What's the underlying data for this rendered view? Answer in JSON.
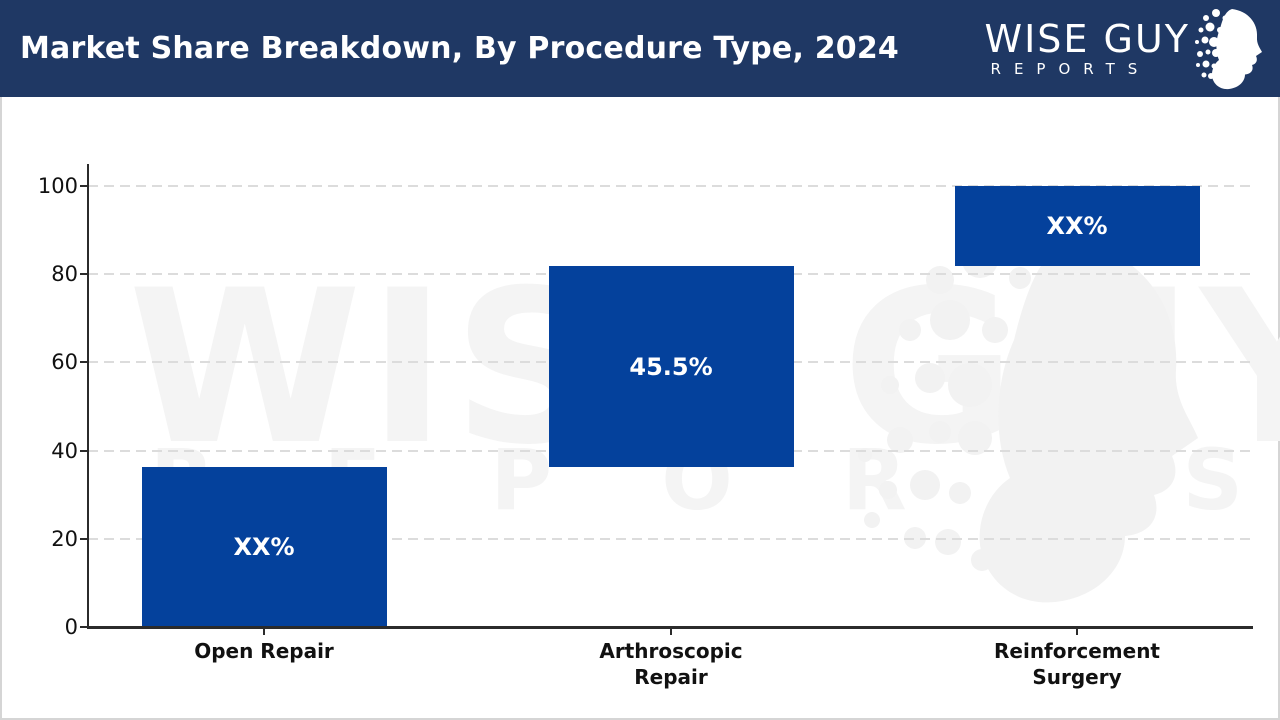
{
  "header": {
    "title": "Market Share Breakdown, By Procedure Type, 2024",
    "logo_line1": "WISE GUY",
    "logo_line2": "REPORTS"
  },
  "watermark": {
    "line1": "WISE GUY",
    "line2": "R E P O R T S"
  },
  "colors": {
    "header_bg": "#1f3864",
    "bar": "#04419c",
    "grid": "#dcdcdc",
    "axis": "#2b2b2b",
    "text": "#111111",
    "bar_label": "#ffffff",
    "watermark": "#f4f4f4"
  },
  "chart_data": {
    "type": "bar",
    "variant": "floating-waterfall",
    "title": "Market Share Breakdown, By Procedure Type, 2024",
    "categories": [
      "Open Repair",
      "Arthroscopic Repair",
      "Reinforcement Surgery"
    ],
    "category_lines": [
      [
        "Open Repair"
      ],
      [
        "Arthroscopic",
        "Repair"
      ],
      [
        "Reinforcement",
        "Surgery"
      ]
    ],
    "bars": [
      {
        "category": "Open Repair",
        "start": 0,
        "end": 36.3,
        "value_label": "XX%"
      },
      {
        "category": "Arthroscopic Repair",
        "start": 36.3,
        "end": 81.8,
        "value_label": "45.5%"
      },
      {
        "category": "Reinforcement Surgery",
        "start": 81.8,
        "end": 100,
        "value_label": "XX%"
      }
    ],
    "yticks": [
      0,
      20,
      40,
      60,
      80,
      100
    ],
    "ylim": [
      0,
      105
    ],
    "xlabel": "",
    "ylabel": "",
    "grid": "horizontal-dashed",
    "legend": false
  }
}
